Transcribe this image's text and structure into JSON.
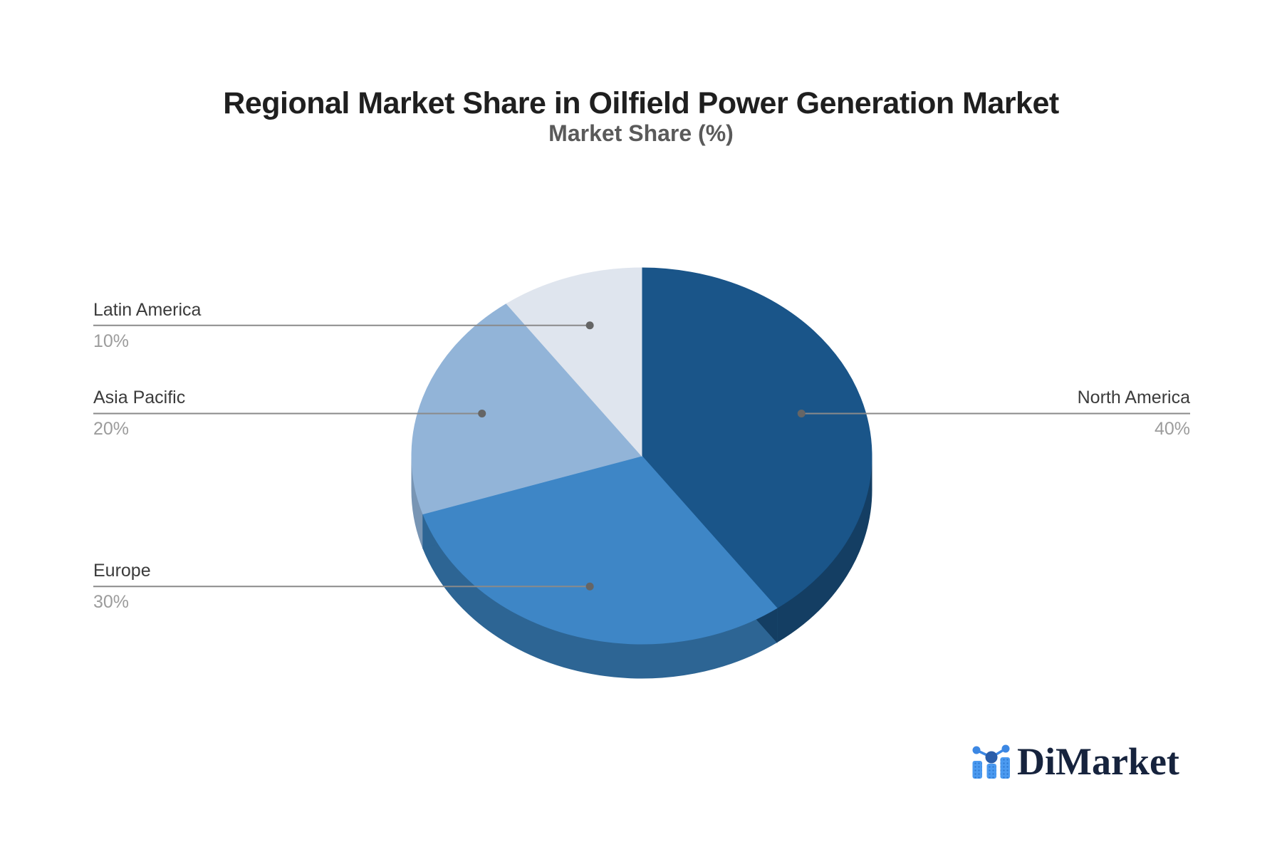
{
  "title": "Regional Market Share in Oilfield Power Generation Market",
  "subtitle": "Market Share (%)",
  "logo": {
    "text": "DiMarket"
  },
  "colors": {
    "background": "#ffffff",
    "title_text": "#1f1f1f",
    "subtitle_text": "#5a5a5a",
    "label_name_text": "#3b3b3b",
    "label_value_text": "#9c9c9c",
    "leader_line": "#8a8a8a",
    "leader_dot": "#656565",
    "logo_text": "#16233d",
    "logo_bar_blue": "#4b9af0",
    "logo_bar_dot": "#2b77cf",
    "logo_line_blue": "#3c87e3",
    "logo_mid_dot": "#2a5da9"
  },
  "chart_data": {
    "type": "pie",
    "style": "3d",
    "title": "Regional Market Share in Oilfield Power Generation Market",
    "subtitle": "Market Share (%)",
    "unit": "%",
    "start_angle_deg": 0,
    "direction": "clockwise",
    "legend": "none",
    "labels_position": "outside-with-leader-lines",
    "series": [
      {
        "name": "North America",
        "value": 40,
        "label": "40%",
        "color": "#1a5589",
        "side_color": "#143e63"
      },
      {
        "name": "Europe",
        "value": 30,
        "label": "30%",
        "color": "#3e86c6",
        "side_color": "#2d6594"
      },
      {
        "name": "Asia Pacific",
        "value": 20,
        "label": "20%",
        "color": "#92b4d8",
        "side_color": "#7895b4"
      },
      {
        "name": "Latin America",
        "value": 10,
        "label": "10%",
        "color": "#dfe5ee",
        "side_color": "#c3cedd"
      }
    ]
  }
}
